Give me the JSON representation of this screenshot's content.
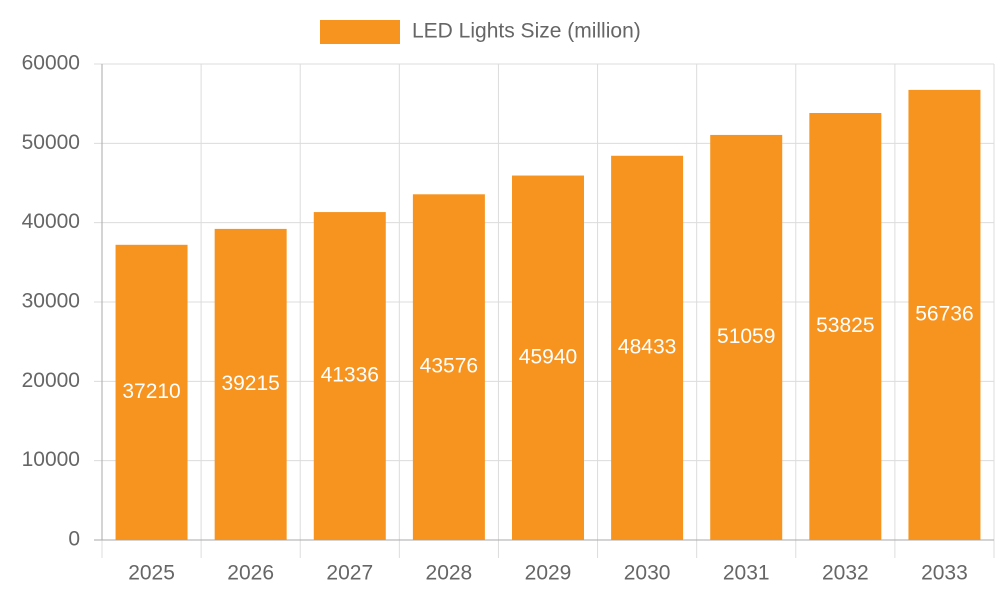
{
  "chart_data": {
    "type": "bar",
    "categories": [
      "2025",
      "2026",
      "2027",
      "2028",
      "2029",
      "2030",
      "2031",
      "2032",
      "2033"
    ],
    "series": [
      {
        "name": "LED Lights Size (million)",
        "color": "#f7941f",
        "values": [
          37210,
          39215,
          41336,
          43576,
          45940,
          48433,
          51059,
          53825,
          56736
        ]
      }
    ],
    "ylim": [
      0,
      60000
    ],
    "yticks": [
      0,
      10000,
      20000,
      30000,
      40000,
      50000,
      60000
    ],
    "grid": true,
    "legend": "top"
  }
}
